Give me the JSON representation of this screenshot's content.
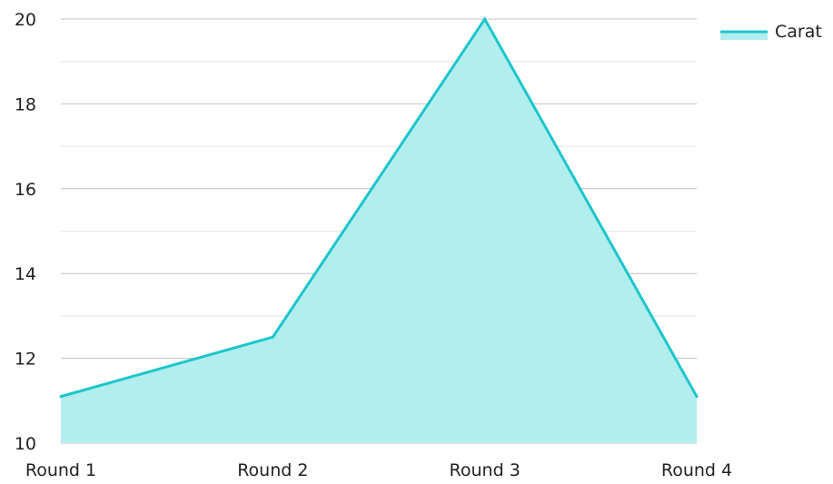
{
  "chart_data": {
    "type": "area",
    "categories": [
      "Round 1",
      "Round 2",
      "Round 3",
      "Round 4"
    ],
    "series": [
      {
        "name": "Carat",
        "values": [
          11.1,
          12.5,
          20,
          11.1
        ]
      }
    ],
    "ylim": [
      10,
      20
    ],
    "y_ticks": [
      10,
      12,
      14,
      16,
      18,
      20
    ],
    "grid": true,
    "legend_position": "top-right",
    "colors": {
      "line": "#1CC6CC",
      "fill": "#B2EEEE",
      "grid_major": "#C0C0C0",
      "grid_minor": "#E3E3E3"
    }
  }
}
